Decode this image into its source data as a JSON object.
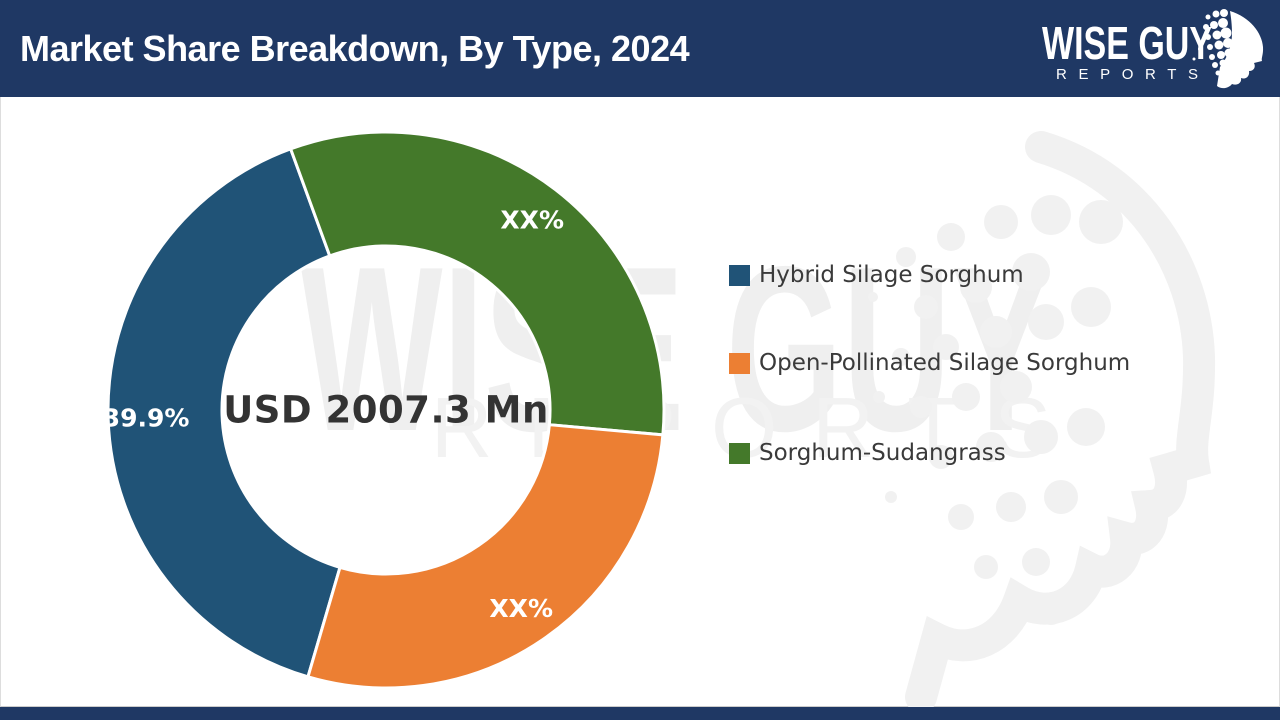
{
  "header": {
    "title": "Market Share Breakdown, By Type, 2024",
    "bar_color": "#1F3864",
    "logo": {
      "line1": "WISE GUY",
      "line2": "REPORTS"
    }
  },
  "watermark": {
    "line1": "WISE GUY",
    "line2": "REPORTS"
  },
  "chart_data": {
    "type": "pie",
    "subtype": "donut",
    "title": "Market Share Breakdown, By Type, 2024",
    "center_label": "USD 2007.3 Mn",
    "rotation_deg_clockwise_from_top": 196.3,
    "inner_radius_ratio": 0.59,
    "slice_gap_color": "#FFFFFF",
    "label_color": "#FFFFFF",
    "segments": [
      {
        "name": "Hybrid Silage Sorghum",
        "data_label": "39.9%",
        "value_pct": 39.9,
        "color": "#205377"
      },
      {
        "name": "Sorghum-Sudangrass",
        "data_label": "XX%",
        "value_pct": 32.0,
        "color": "#44792A"
      },
      {
        "name": "Open-Pollinated Silage Sorghum",
        "data_label": "XX%",
        "value_pct": 28.1,
        "color": "#EC7F33"
      }
    ],
    "legend_position": "right"
  },
  "legend": {
    "items": [
      {
        "label": "Hybrid Silage Sorghum",
        "color": "#205377"
      },
      {
        "label": "Open-Pollinated Silage Sorghum",
        "color": "#EC7F33"
      },
      {
        "label": "Sorghum-Sudangrass",
        "color": "#44792A"
      }
    ]
  }
}
